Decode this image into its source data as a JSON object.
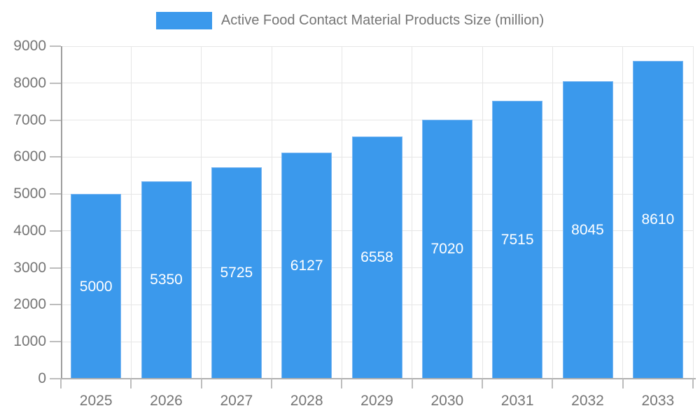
{
  "legend": {
    "label": "Active Food Contact Material Products Size (million)"
  },
  "chart_data": {
    "type": "bar",
    "title": "Active Food Contact Material Products Size (million)",
    "categories": [
      "2025",
      "2026",
      "2027",
      "2028",
      "2029",
      "2030",
      "2031",
      "2032",
      "2033"
    ],
    "values": [
      5000,
      5350,
      5725,
      6127,
      6558,
      7020,
      7515,
      8045,
      8610
    ],
    "series": [
      {
        "name": "Active Food Contact Material Products Size (million)",
        "values": [
          5000,
          5350,
          5725,
          6127,
          6558,
          7020,
          7515,
          8045,
          8610
        ]
      }
    ],
    "xlabel": "",
    "ylabel": "",
    "ylim": [
      0,
      9000
    ],
    "ytick_step": 1000,
    "grid": true,
    "legend_position": "top",
    "value_labels": "inside-center",
    "colors": {
      "bar": "#3b99ec",
      "bar_border": "#7ab7f2",
      "value_label": "#ffffff",
      "axis_text": "#757575",
      "grid": "#e6e6e6",
      "y_axis_line": "#9e9e9e",
      "x_axis_line": "#b0b0b0",
      "tick": "#bdbdbd",
      "background": "#ffffff"
    }
  }
}
